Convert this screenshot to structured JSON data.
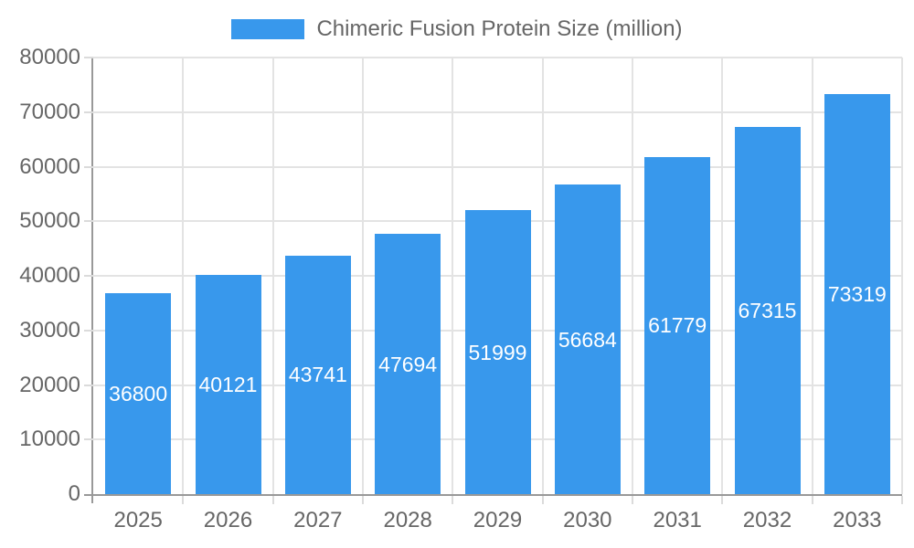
{
  "legend": {
    "label": "Chimeric Fusion Protein Size (million)"
  },
  "chart_data": {
    "type": "bar",
    "title": "Chimeric Fusion Protein Size (million)",
    "categories": [
      "2025",
      "2026",
      "2027",
      "2028",
      "2029",
      "2030",
      "2031",
      "2032",
      "2033"
    ],
    "values": [
      36800,
      40121,
      43741,
      47694,
      51999,
      56684,
      61779,
      67315,
      73319
    ],
    "xlabel": "",
    "ylabel": "",
    "ylim": [
      0,
      80000
    ],
    "ytick_step": 10000,
    "ytick_labels": [
      "0",
      "10000",
      "20000",
      "30000",
      "40000",
      "50000",
      "60000",
      "70000",
      "80000"
    ],
    "grid": true,
    "legend_position": "top",
    "value_labels": "inside-center",
    "colors": {
      "bar": "#3898EC",
      "value_label_text": "#FFFFFF",
      "axis_text": "#666666",
      "grid_line": "#E3E3E3",
      "axis_line": "#999999",
      "background": "#FFFFFF"
    }
  }
}
